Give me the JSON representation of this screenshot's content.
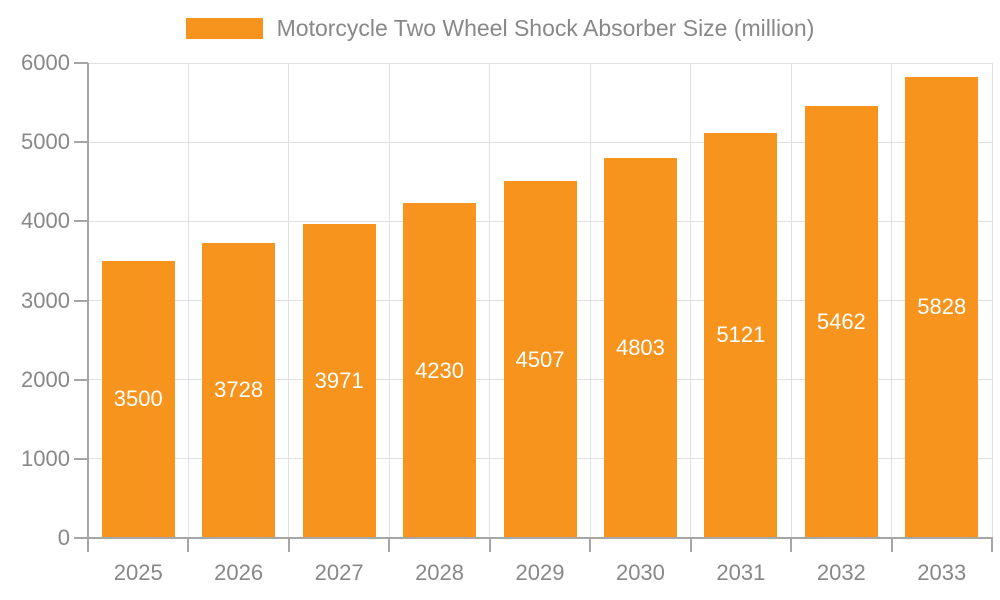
{
  "chart_data": {
    "type": "bar",
    "title": "",
    "legend": "Motorcycle Two Wheel Shock Absorber Size (million)",
    "legend_position": "top",
    "categories": [
      "2025",
      "2026",
      "2027",
      "2028",
      "2029",
      "2030",
      "2031",
      "2032",
      "2033"
    ],
    "values": [
      3500,
      3728,
      3971,
      4230,
      4507,
      4803,
      5121,
      5462,
      5828
    ],
    "xlabel": "",
    "ylabel": "",
    "ylim": [
      0,
      6000
    ],
    "y_ticks": [
      0,
      1000,
      2000,
      3000,
      4000,
      5000,
      6000
    ],
    "grid": true,
    "bar_label_position": "inside-center",
    "colors": {
      "bar": "#f7941e",
      "grid": "#e0e0e0",
      "axis": "#a6a6a6",
      "text": "#888888",
      "bar_label": "#ffffff",
      "background": "#ffffff"
    }
  }
}
